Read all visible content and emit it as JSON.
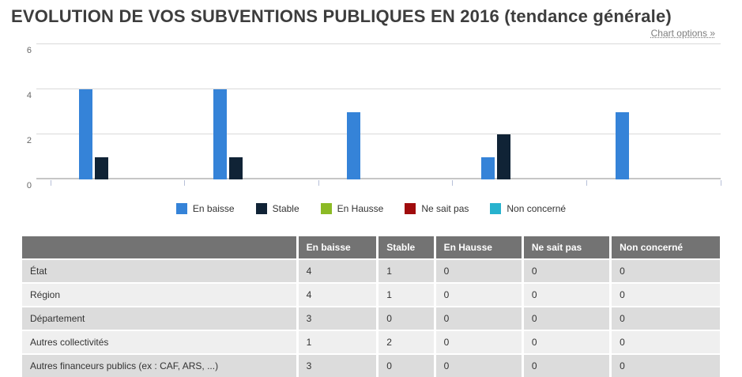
{
  "title": "EVOLUTION DE VOS SUBVENTIONS PUBLIQUES EN 2016 (tendance générale)",
  "chart_options_label": "Chart options »",
  "chart_data": {
    "type": "bar",
    "title": "EVOLUTION DE VOS SUBVENTIONS PUBLIQUES EN 2016 (tendance générale)",
    "categories": [
      "État",
      "Région",
      "Département",
      "Autres collectivités",
      "Autres financeurs publics (ex : CAF, ARS, ...)"
    ],
    "series": [
      {
        "name": "En baisse",
        "color": "#3583D8",
        "values": [
          4,
          4,
          3,
          1,
          3
        ]
      },
      {
        "name": "Stable",
        "color": "#102336",
        "values": [
          1,
          1,
          0,
          2,
          0
        ]
      },
      {
        "name": "En Hausse",
        "color": "#8CBA25",
        "values": [
          0,
          0,
          0,
          0,
          0
        ]
      },
      {
        "name": "Ne sait pas",
        "color": "#A00C0D",
        "values": [
          0,
          0,
          0,
          0,
          0
        ]
      },
      {
        "name": "Non concerné",
        "color": "#27B2CE",
        "values": [
          0,
          0,
          0,
          0,
          0
        ]
      }
    ],
    "xlabel": "",
    "ylabel": "",
    "ylim": [
      0,
      6
    ],
    "yticks": [
      0,
      2,
      4,
      6
    ],
    "grid": true,
    "legend_position": "bottom",
    "x_tick_labels_visible": false
  },
  "table": {
    "columns": [
      "",
      "En baisse",
      "Stable",
      "En Hausse",
      "Ne sait pas",
      "Non concerné"
    ],
    "rows": [
      {
        "label": "État",
        "values": [
          "4",
          "1",
          "0",
          "0",
          "0"
        ]
      },
      {
        "label": "Région",
        "values": [
          "4",
          "1",
          "0",
          "0",
          "0"
        ]
      },
      {
        "label": "Département",
        "values": [
          "3",
          "0",
          "0",
          "0",
          "0"
        ]
      },
      {
        "label": "Autres collectivités",
        "values": [
          "1",
          "2",
          "0",
          "0",
          "0"
        ]
      },
      {
        "label": "Autres financeurs publics (ex : CAF, ARS, ...)",
        "values": [
          "3",
          "0",
          "0",
          "0",
          "0"
        ]
      }
    ]
  },
  "colors": {
    "grid": "#d9d9d9",
    "axis": "#c6c6c6",
    "header_bg": "#737373",
    "row_odd": "#dcdcdc",
    "row_even": "#efefef"
  }
}
